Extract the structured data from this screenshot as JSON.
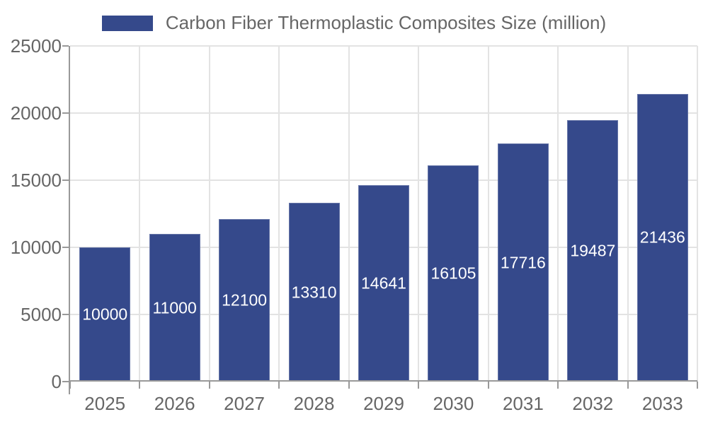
{
  "chart_data": {
    "type": "bar",
    "title": "",
    "series_name": "Carbon Fiber Thermoplastic Composites Size (million)",
    "categories": [
      "2025",
      "2026",
      "2027",
      "2028",
      "2029",
      "2030",
      "2031",
      "2032",
      "2033"
    ],
    "values": [
      10000,
      11000,
      12100,
      13310,
      14641,
      16105,
      17716,
      19487,
      21436
    ],
    "value_labels": [
      "10000",
      "11000",
      "12100",
      "13310",
      "14641",
      "16105",
      "17716",
      "19487",
      "21436"
    ],
    "ylim": [
      0,
      25000
    ],
    "yticks": [
      0,
      5000,
      10000,
      15000,
      20000,
      25000
    ],
    "ytick_labels": [
      "0",
      "5000",
      "10000",
      "15000",
      "20000",
      "25000"
    ],
    "grid": true,
    "legend_position": "top",
    "colors": {
      "bar": "#35498b",
      "grid": "#e3e3e3",
      "axis": "#999999",
      "label_text": "#666666",
      "value_text": "#ffffff",
      "background": "#ffffff"
    }
  }
}
